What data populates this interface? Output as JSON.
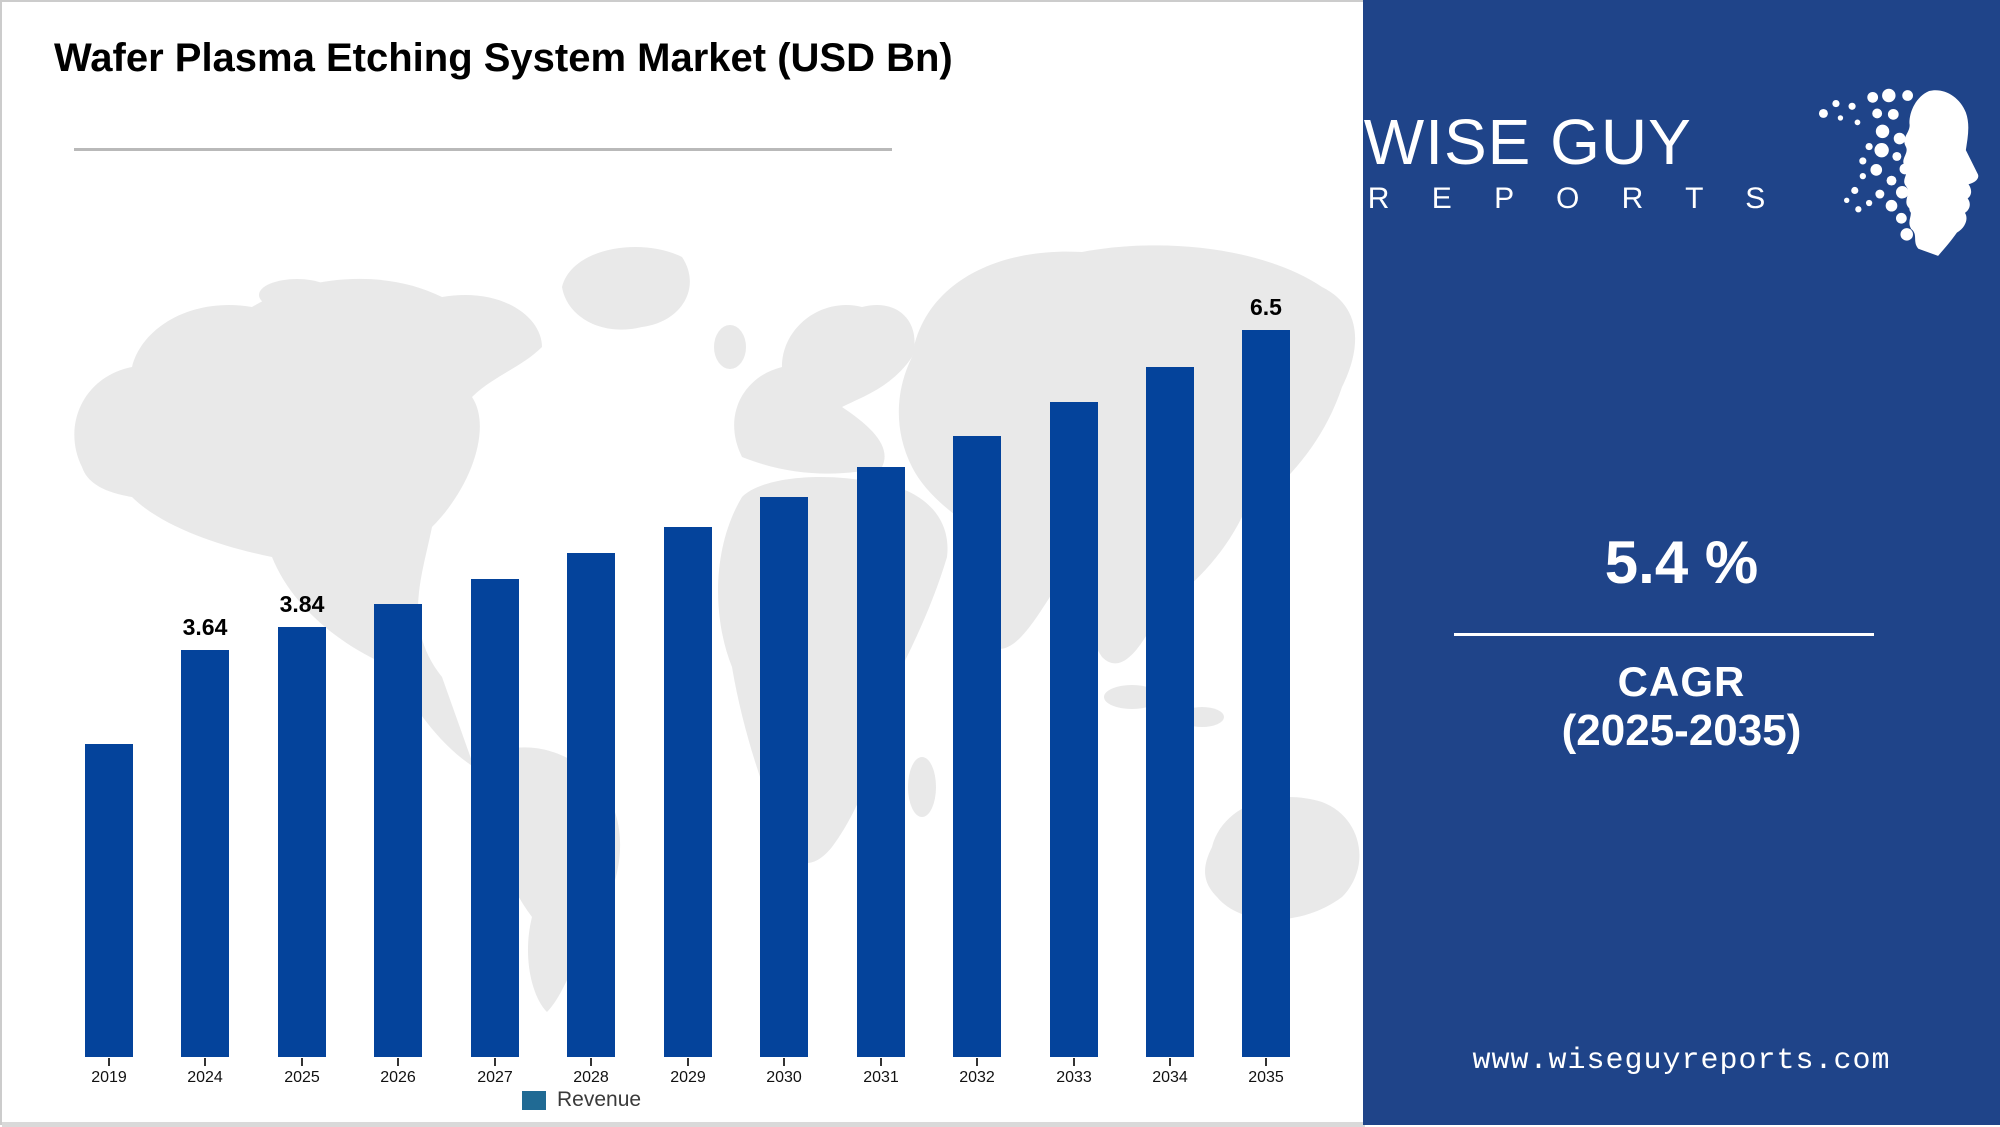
{
  "title": "Wafer Plasma Etching System Market (USD Bn)",
  "chart_data": {
    "type": "bar",
    "title": "Wafer Plasma Etching System Market (USD Bn)",
    "categories": [
      "2019",
      "2024",
      "2025",
      "2026",
      "2027",
      "2028",
      "2029",
      "2030",
      "2031",
      "2032",
      "2033",
      "2034",
      "2035"
    ],
    "values": [
      2.8,
      3.64,
      3.84,
      4.05,
      4.27,
      4.5,
      4.74,
      5.0,
      5.27,
      5.55,
      5.85,
      6.17,
      6.5
    ],
    "point_labels": {
      "2024": "3.64",
      "2025": "3.84",
      "2035": "6.5"
    },
    "series": [
      {
        "name": "Revenue",
        "color": "#04439b"
      }
    ],
    "xlabel": "",
    "ylabel": "",
    "ylim": [
      0,
      7.4
    ],
    "grid": false,
    "legend_position": "bottom-center",
    "background": "world-map-watermark"
  },
  "legend": {
    "revenue_label": "Revenue",
    "swatch_color": "#206a94"
  },
  "sidebar": {
    "background_color": "#1f4489",
    "logo_line1": "WISE GUY",
    "logo_line2": "R E P O R T S",
    "cagr_value": "5.4 %",
    "cagr_label": "CAGR",
    "cagr_period": "(2025-2035)",
    "website": "www.wiseguyreports.com"
  }
}
